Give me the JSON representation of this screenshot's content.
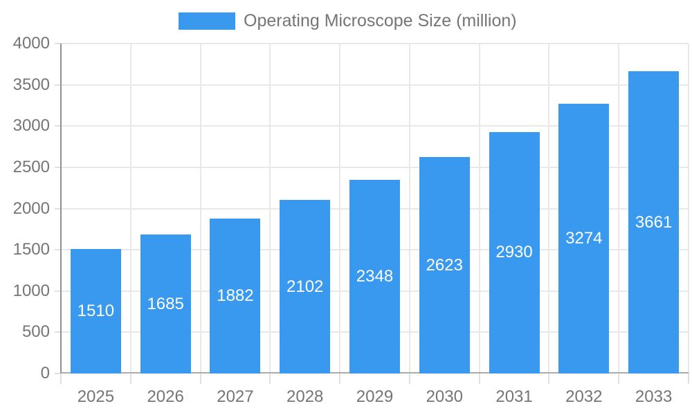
{
  "legend": {
    "label": "Operating Microscope Size (million)"
  },
  "colors": {
    "bar": "#3899EE",
    "bar_label": "#FFFFFF",
    "axis_label": "#757575",
    "legend_label": "#757575",
    "grid_line": "#E8E8E8",
    "tick": "#E0E0E0",
    "axis_line_y": "#909090",
    "axis_line_x": "#ACACAC",
    "background": "#FFFFFF"
  },
  "chart_data": {
    "type": "bar",
    "title": "",
    "categories": [
      "2025",
      "2026",
      "2027",
      "2028",
      "2029",
      "2030",
      "2031",
      "2032",
      "2033"
    ],
    "series": [
      {
        "name": "Operating Microscope Size (million)",
        "values": [
          1510,
          1685,
          1882,
          2102,
          2348,
          2623,
          2930,
          3274,
          3661
        ]
      }
    ],
    "xlabel": "",
    "ylabel": "",
    "ylim": [
      0,
      4000
    ],
    "yticks": [
      0,
      500,
      1000,
      1500,
      2000,
      2500,
      3000,
      3500,
      4000
    ],
    "grid": true,
    "legend_position": "top",
    "value_labels": "inside-center"
  }
}
